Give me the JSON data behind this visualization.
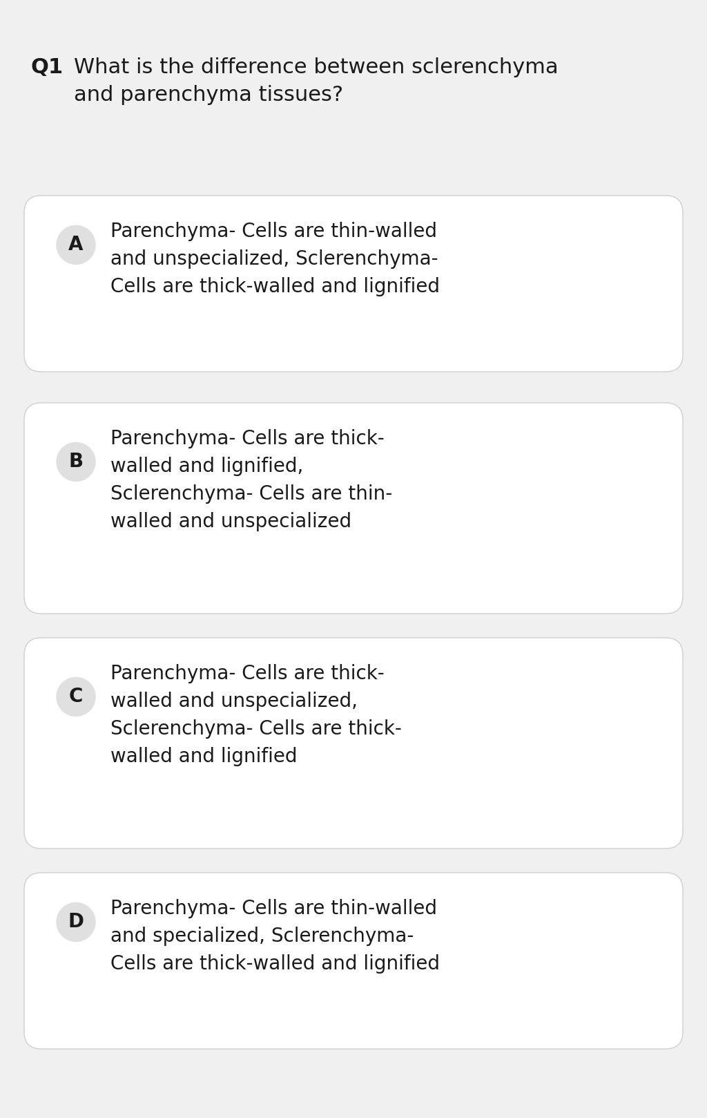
{
  "background_color": "#f0f0f0",
  "card_color": "#ffffff",
  "card_border_color": "#d0d0d0",
  "question_label": "Q1",
  "question_text": "What is the difference between sclerenchyma\nand parenchyma tissues?",
  "options": [
    {
      "label": "A",
      "text": "Parenchyma- Cells are thin-walled\nand unspecialized, Sclerenchyma-\nCells are thick-walled and lignified"
    },
    {
      "label": "B",
      "text": "Parenchyma- Cells are thick-\nwalled and lignified,\nSclerenchyma- Cells are thin-\nwalled and unspecialized"
    },
    {
      "label": "C",
      "text": "Parenchyma- Cells are thick-\nwalled and unspecialized,\nSclerenchyma- Cells are thick-\nwalled and lignified"
    },
    {
      "label": "D",
      "text": "Parenchyma- Cells are thin-walled\nand specialized, Sclerenchyma-\nCells are thick-walled and lignified"
    }
  ],
  "question_label_fontsize": 22,
  "question_text_fontsize": 22,
  "option_label_fontsize": 20,
  "option_text_fontsize": 20,
  "label_bg_color": "#e0e0e0",
  "text_color": "#1a1a1a"
}
